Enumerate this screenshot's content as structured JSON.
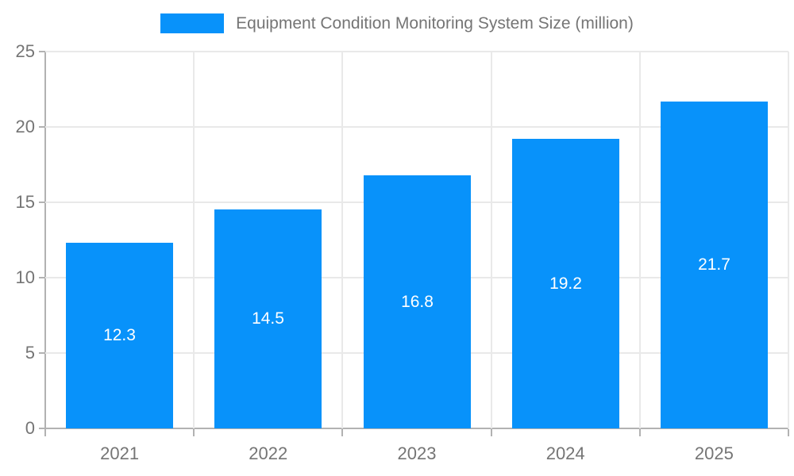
{
  "chart_data": {
    "type": "bar",
    "title": "Equipment Condition Monitoring System Size (million)",
    "legend": [
      "Equipment Condition Monitoring System Size (million)"
    ],
    "legend_position": "top",
    "categories": [
      "2021",
      "2022",
      "2023",
      "2024",
      "2025"
    ],
    "series": [
      {
        "name": "Equipment Condition Monitoring System Size (million)",
        "values": [
          12.3,
          14.5,
          16.8,
          19.2,
          21.7
        ]
      }
    ],
    "value_labels": [
      "12.3",
      "14.5",
      "16.8",
      "19.2",
      "21.7"
    ],
    "xlabel": "",
    "ylabel": "",
    "ylim": [
      0,
      25
    ],
    "y_ticks": [
      0,
      5,
      10,
      15,
      20,
      25
    ],
    "grid": "on"
  },
  "colors": {
    "bar": "#0892fa",
    "value_label": "#ffffff",
    "axis_label": "#757575",
    "axis_line": "#b2b2b2",
    "gridline": "#e9e9e9",
    "background": "#ffffff"
  }
}
